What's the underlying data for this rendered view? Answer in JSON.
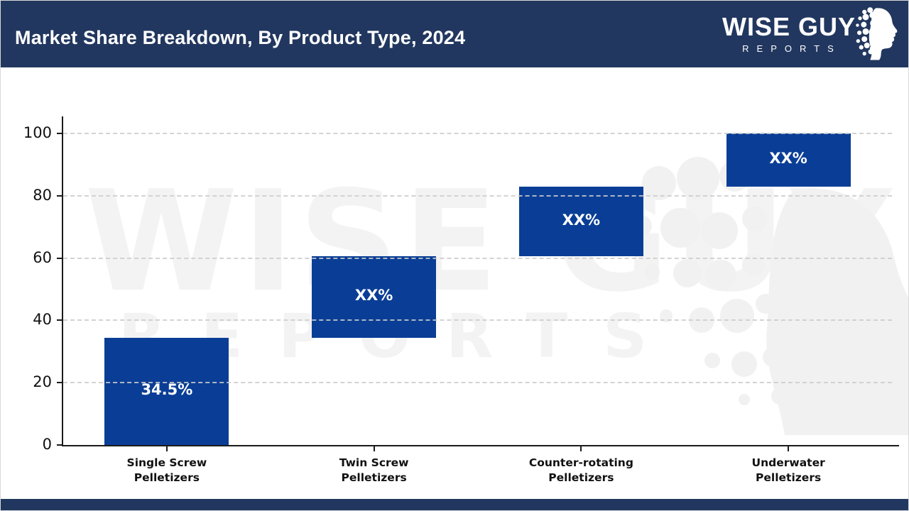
{
  "header": {
    "title": "Market Share Breakdown, By Product Type, 2024",
    "logo": {
      "primary": "WISE GUY",
      "secondary": "REPORTS"
    }
  },
  "watermark": {
    "primary": "WISE GUY",
    "secondary": "REPORTS"
  },
  "chart_data": {
    "type": "bar",
    "subtype": "waterfall",
    "title": "Market Share Breakdown, By Product Type, 2024",
    "categories": [
      [
        "Single Screw",
        "Pelletizers"
      ],
      [
        "Twin Screw",
        "Pelletizers"
      ],
      [
        "Counter-rotating",
        "Pelletizers"
      ],
      [
        "Underwater",
        "Pelletizers"
      ]
    ],
    "segments": [
      {
        "category": "Single Screw Pelletizers",
        "from": 0,
        "to": 34.5,
        "label": "34.5%"
      },
      {
        "category": "Twin Screw Pelletizers",
        "from": 34.5,
        "to": 60.5,
        "label": "XX%"
      },
      {
        "category": "Counter-rotating Pelletizers",
        "from": 60.5,
        "to": 83,
        "label": "XX%"
      },
      {
        "category": "Underwater Pelletizers",
        "from": 83,
        "to": 100,
        "label": "XX%"
      }
    ],
    "xlabel": "",
    "ylabel": "",
    "ylim": [
      0,
      100
    ],
    "yticks": [
      0,
      20,
      40,
      60,
      80,
      100
    ],
    "grid": "horizontal-dashed",
    "legend": "none",
    "bar_color": "#0a3e96",
    "bar_label_color": "#ffffff"
  },
  "colors": {
    "header_bg": "#22375f",
    "footer_bg": "#22375f",
    "bar": "#0a3e96",
    "grid": "#cbcbcb",
    "axis": "#1a1a1a",
    "watermark": "#f3f3f3"
  }
}
